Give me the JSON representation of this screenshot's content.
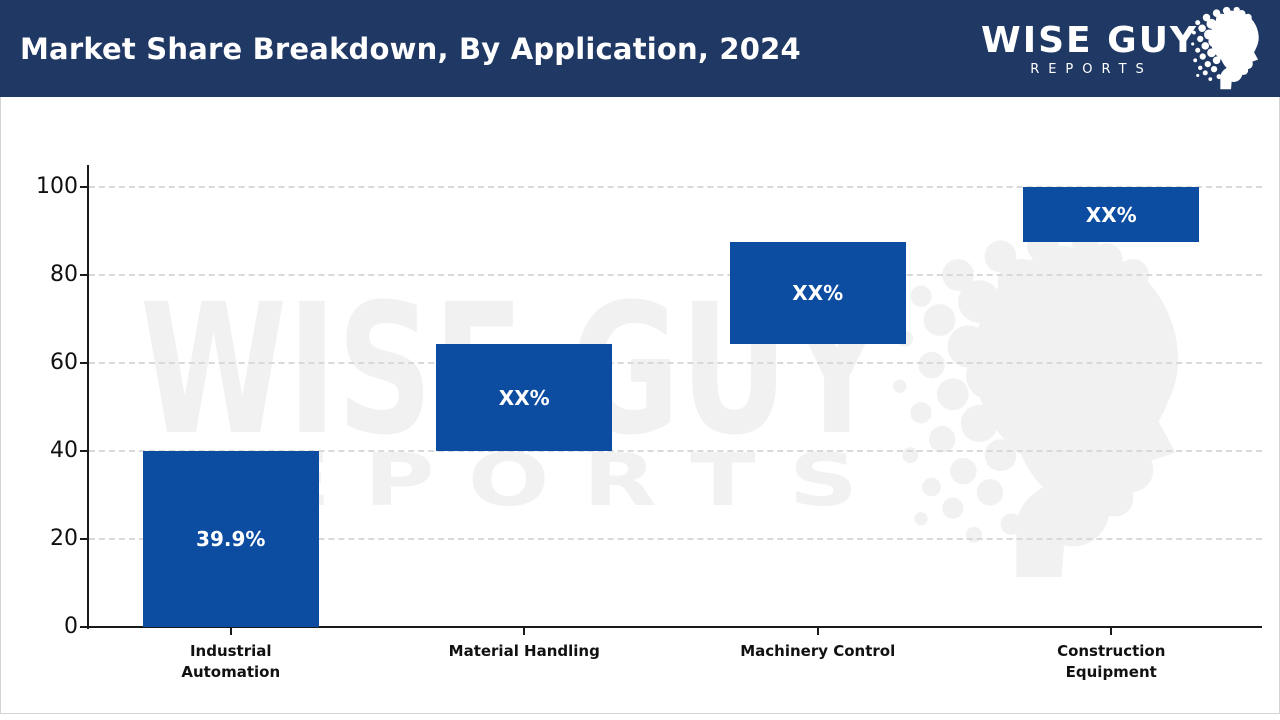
{
  "header": {
    "title": "Market Share Breakdown, By Application, 2024",
    "logo": {
      "line1": "WISE GUY",
      "line2": "REPORTS"
    }
  },
  "watermark": {
    "line1": "WISE GUY",
    "line2": "R E P O R T S"
  },
  "chart_data": {
    "type": "bar",
    "subtype": "waterfall",
    "title": "Market Share Breakdown, By Application, 2024",
    "categories": [
      "Industrial\nAutomation",
      "Material Handling",
      "Machinery Control",
      "Construction\nEquipment"
    ],
    "bars": [
      {
        "category": "Industrial\nAutomation",
        "start": 0,
        "end": 39.9,
        "label": "39.9%"
      },
      {
        "category": "Material Handling",
        "start": 39.9,
        "end": 64.3,
        "label": "XX%"
      },
      {
        "category": "Machinery Control",
        "start": 64.3,
        "end": 87.5,
        "label": "XX%"
      },
      {
        "category": "Construction\nEquipment",
        "start": 87.5,
        "end": 100,
        "label": "XX%"
      }
    ],
    "yticks": [
      0,
      20,
      40,
      60,
      80,
      100
    ],
    "ylim": [
      0,
      105
    ],
    "xlabel": "",
    "ylabel": "",
    "legend": "none",
    "grid": {
      "horizontal": true,
      "style": "dashed"
    },
    "bar_color": "#0c4da2",
    "bar_label_color": "#ffffff",
    "axis_color": "#1a1a1a",
    "grid_color": "#d9d9d9"
  },
  "colors": {
    "header_bg": "#1f3864",
    "header_text": "#ffffff",
    "page_bg": "#ffffff",
    "frame_border": "#d4d4d4",
    "watermark": "#f1f1f2"
  }
}
